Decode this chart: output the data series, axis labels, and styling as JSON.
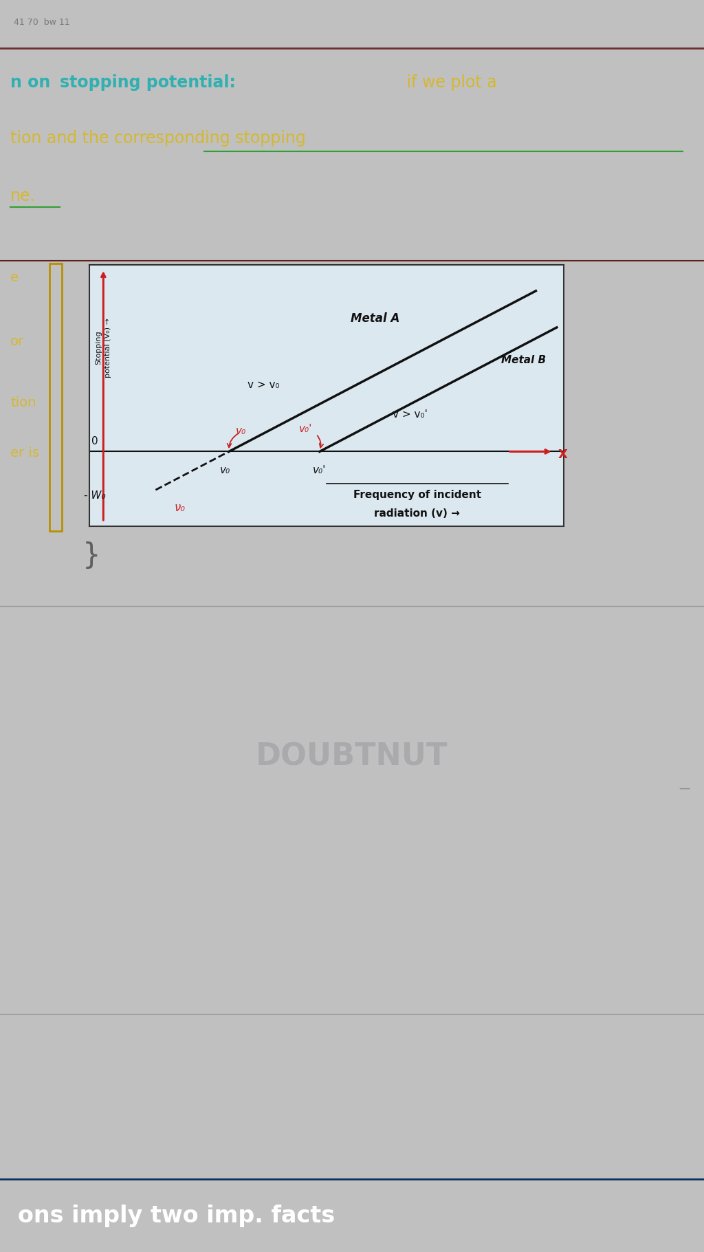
{
  "bg_gray": "#c0c0c0",
  "bg_dark": "#252020",
  "graph_bg": "#dce8f0",
  "text_cyan": "#30b0b0",
  "text_yellow": "#d4b830",
  "text_dark": "#111111",
  "text_red": "#cc2020",
  "text_white": "#ffffff",
  "blue_banner": "#1a5fa0",
  "gold_border": "#b89000",
  "axis_red": "#cc2020",
  "line_black": "#111111",
  "graph_border": "#333333",
  "green_underline": "#30a030",
  "mid_bg": "#b8b8b8",
  "mid_text": "#909098",
  "top_strip_bg": "#a8a8a8",
  "header_line1_pre": "n on ",
  "header_line1_bold": "stopping potential:",
  "header_line1_post": " if we plot a",
  "header_line2": "tion and the corresponding stopping",
  "header_line3": "ne.",
  "left_labels": [
    [
      "e",
      0.93
    ],
    [
      "or",
      0.7
    ],
    [
      "tion",
      0.48
    ],
    [
      "er is",
      0.3
    ]
  ],
  "ylabel_top": "Stopping",
  "ylabel_bot": "potential (V₀) →",
  "xlabel1": "Frequency of incident",
  "xlabel2": "radiation (v) →",
  "metal_A": "Metal A",
  "metal_B": "Metal B",
  "v_gt_v0": "v > v₀",
  "v_gt_v0p": "v > v₀'",
  "v0_black": "v₀",
  "v0p_black": "v₀'",
  "v0_red": "v₀",
  "v0p_red": "v₀'",
  "nu0_red": "ν₀",
  "W0": "- W₀",
  "zero": "0",
  "footer_text": "ons imply two imp. facts",
  "mid_watermark": "DOUBTNUT",
  "fig_w": 10.24,
  "fig_h": 18.2,
  "dpi": 100
}
